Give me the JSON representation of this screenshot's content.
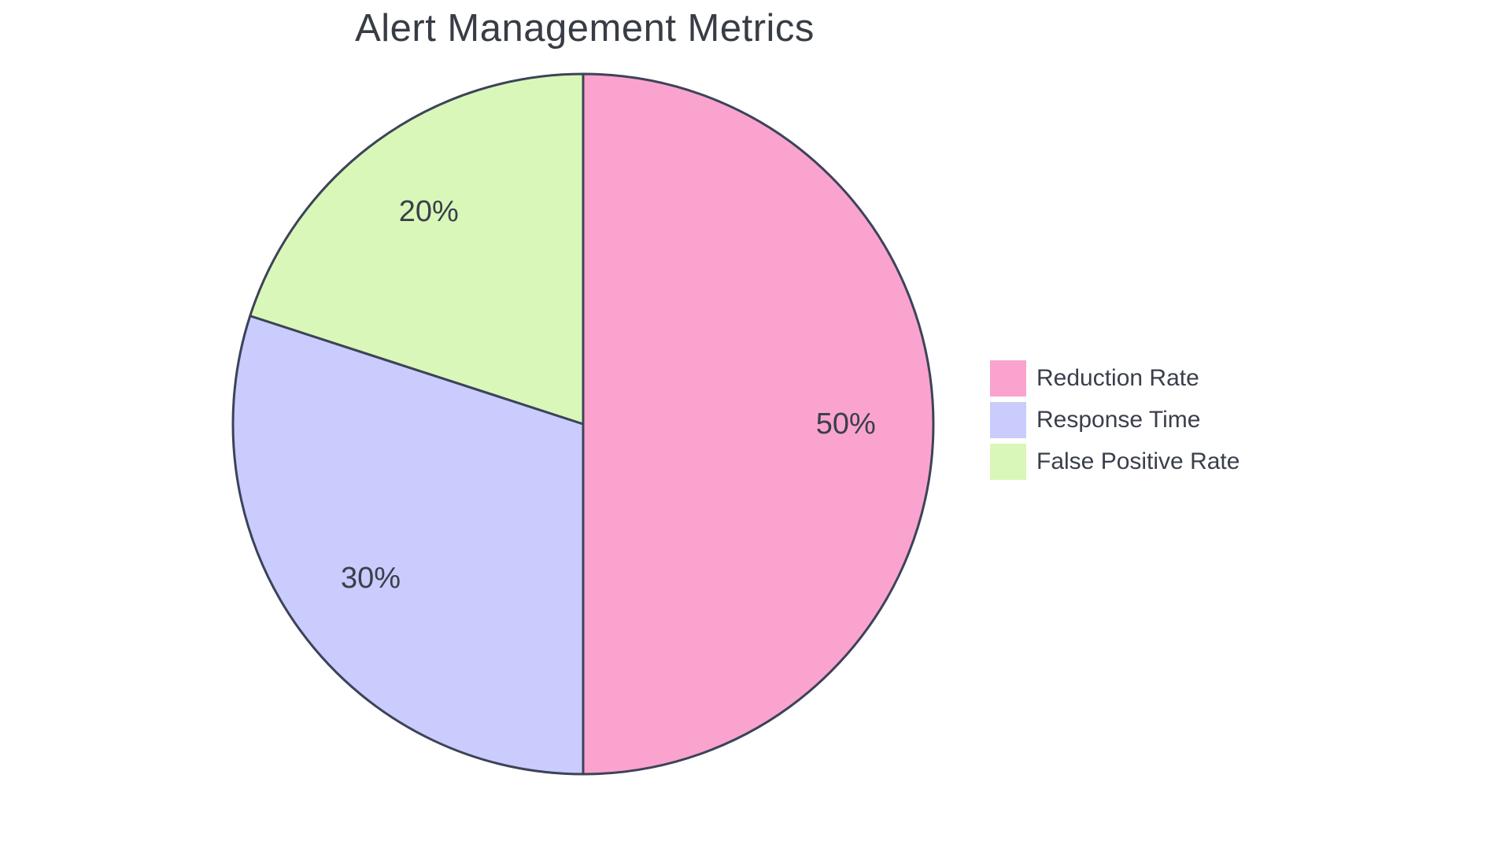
{
  "chart_data": {
    "type": "pie",
    "title": "Alert Management Metrics",
    "direction": "clockwise",
    "start_angle_deg": 0,
    "legend_position": "right",
    "grid": false,
    "background_color": "#FFFFFF",
    "slice_border_color": "#3C4358",
    "label_color": "#3A3F4A",
    "title_color": "#383C44",
    "segments": [
      {
        "label": "Reduction Rate",
        "value": 50,
        "percent_label": "50%",
        "color": "#FAA3CF"
      },
      {
        "label": "Response Time",
        "value": 30,
        "percent_label": "30%",
        "color": "#C9CCFC"
      },
      {
        "label": "False Positive Rate",
        "value": 20,
        "percent_label": "20%",
        "color": "#D9F7B9"
      }
    ]
  }
}
